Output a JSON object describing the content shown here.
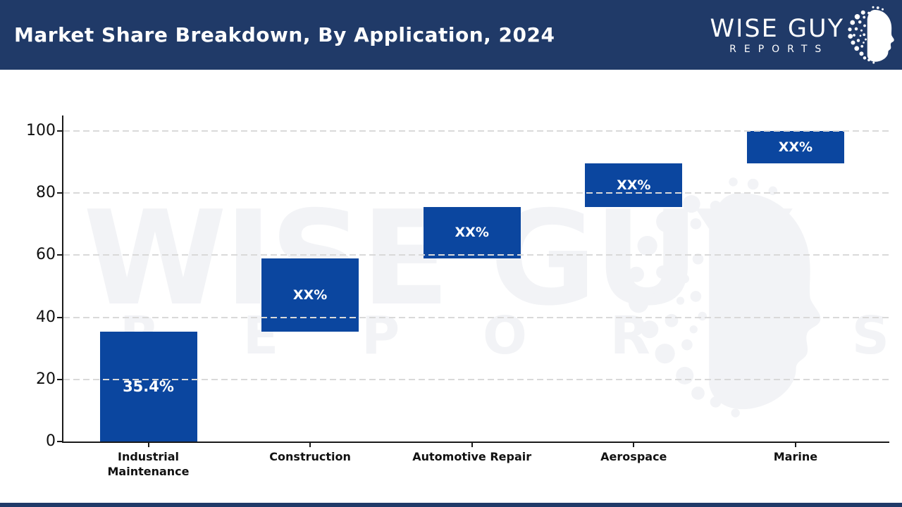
{
  "header": {
    "title": "Market Share Breakdown, By Application, 2024",
    "logo": {
      "line1": "WISE GUY",
      "line2": "REPORTS"
    }
  },
  "watermark": {
    "line1": "WISE GUY",
    "line2": "R E P O R T S"
  },
  "chart_data": {
    "type": "bar",
    "subtype": "waterfall",
    "title": "Market Share Breakdown, By Application, 2024",
    "categories": [
      "Industrial Maintenance",
      "Construction",
      "Automotive Repair",
      "Aerospace",
      "Marine"
    ],
    "bars": [
      {
        "category": "Industrial Maintenance",
        "start": 0,
        "end": 35.4,
        "label": "35.4%"
      },
      {
        "category": "Construction",
        "start": 35.4,
        "end": 59.0,
        "label": "XX%"
      },
      {
        "category": "Automotive Repair",
        "start": 59.0,
        "end": 75.5,
        "label": "XX%"
      },
      {
        "category": "Aerospace",
        "start": 75.5,
        "end": 89.6,
        "label": "XX%"
      },
      {
        "category": "Marine",
        "start": 89.6,
        "end": 100,
        "label": "XX%"
      }
    ],
    "yticks": [
      0,
      20,
      40,
      60,
      80,
      100
    ],
    "ylim": [
      0,
      105
    ],
    "xlabel": "",
    "ylabel": "",
    "grid": "dashed horizontal, drawn over bars",
    "legend": "none",
    "bar_color": "#0b469f",
    "bar_label_color": "#ffffff",
    "axis_color": "#1a1a1a",
    "grid_color": "#d9d9d9",
    "header_bg": "#203a68",
    "footer_bg": "#203a68",
    "watermark_color": "#f2f3f6"
  }
}
